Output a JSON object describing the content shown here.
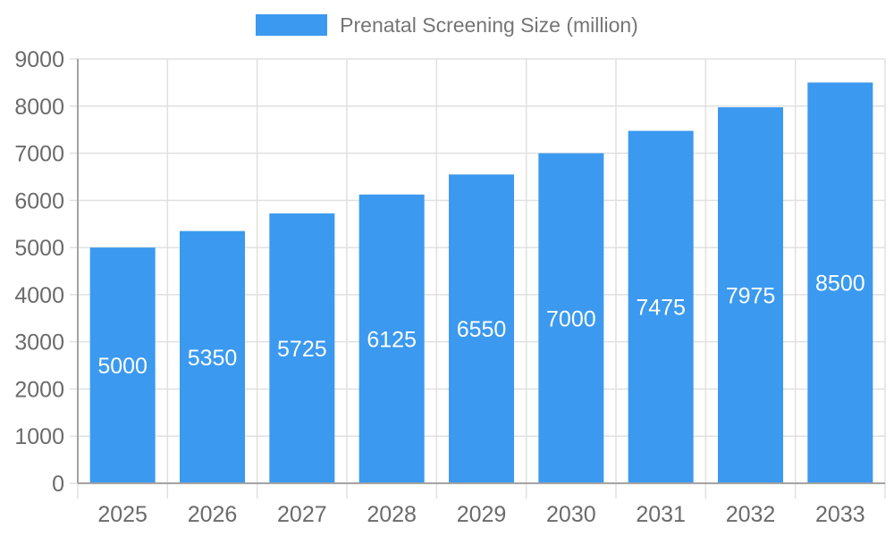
{
  "legend": {
    "label": "Prenatal Screening Size (million)"
  },
  "chart_data": {
    "type": "bar",
    "title": "Prenatal Screening Size (million)",
    "categories": [
      "2025",
      "2026",
      "2027",
      "2028",
      "2029",
      "2030",
      "2031",
      "2032",
      "2033"
    ],
    "values": [
      5000,
      5350,
      5725,
      6125,
      6550,
      7000,
      7475,
      7975,
      8500
    ],
    "value_labels": [
      "5000",
      "5350",
      "5725",
      "6125",
      "6550",
      "7000",
      "7475",
      "7975",
      "8500"
    ],
    "xlabel": "",
    "ylabel": "",
    "ylim": [
      0,
      9000
    ],
    "ytick_interval": 1000,
    "ytick_labels": [
      "0",
      "1000",
      "2000",
      "3000",
      "4000",
      "5000",
      "6000",
      "7000",
      "8000",
      "9000"
    ],
    "grid": true,
    "legend_position": "top",
    "colors": {
      "bar": "#3B99EF",
      "bar_label": "#FFFFFF",
      "axis_text": "#6B6B6B",
      "legend_text": "#757575",
      "grid_line": "#E0E0E0",
      "axis_line": "#A3A3A3",
      "background": "#FFFFFF"
    }
  }
}
